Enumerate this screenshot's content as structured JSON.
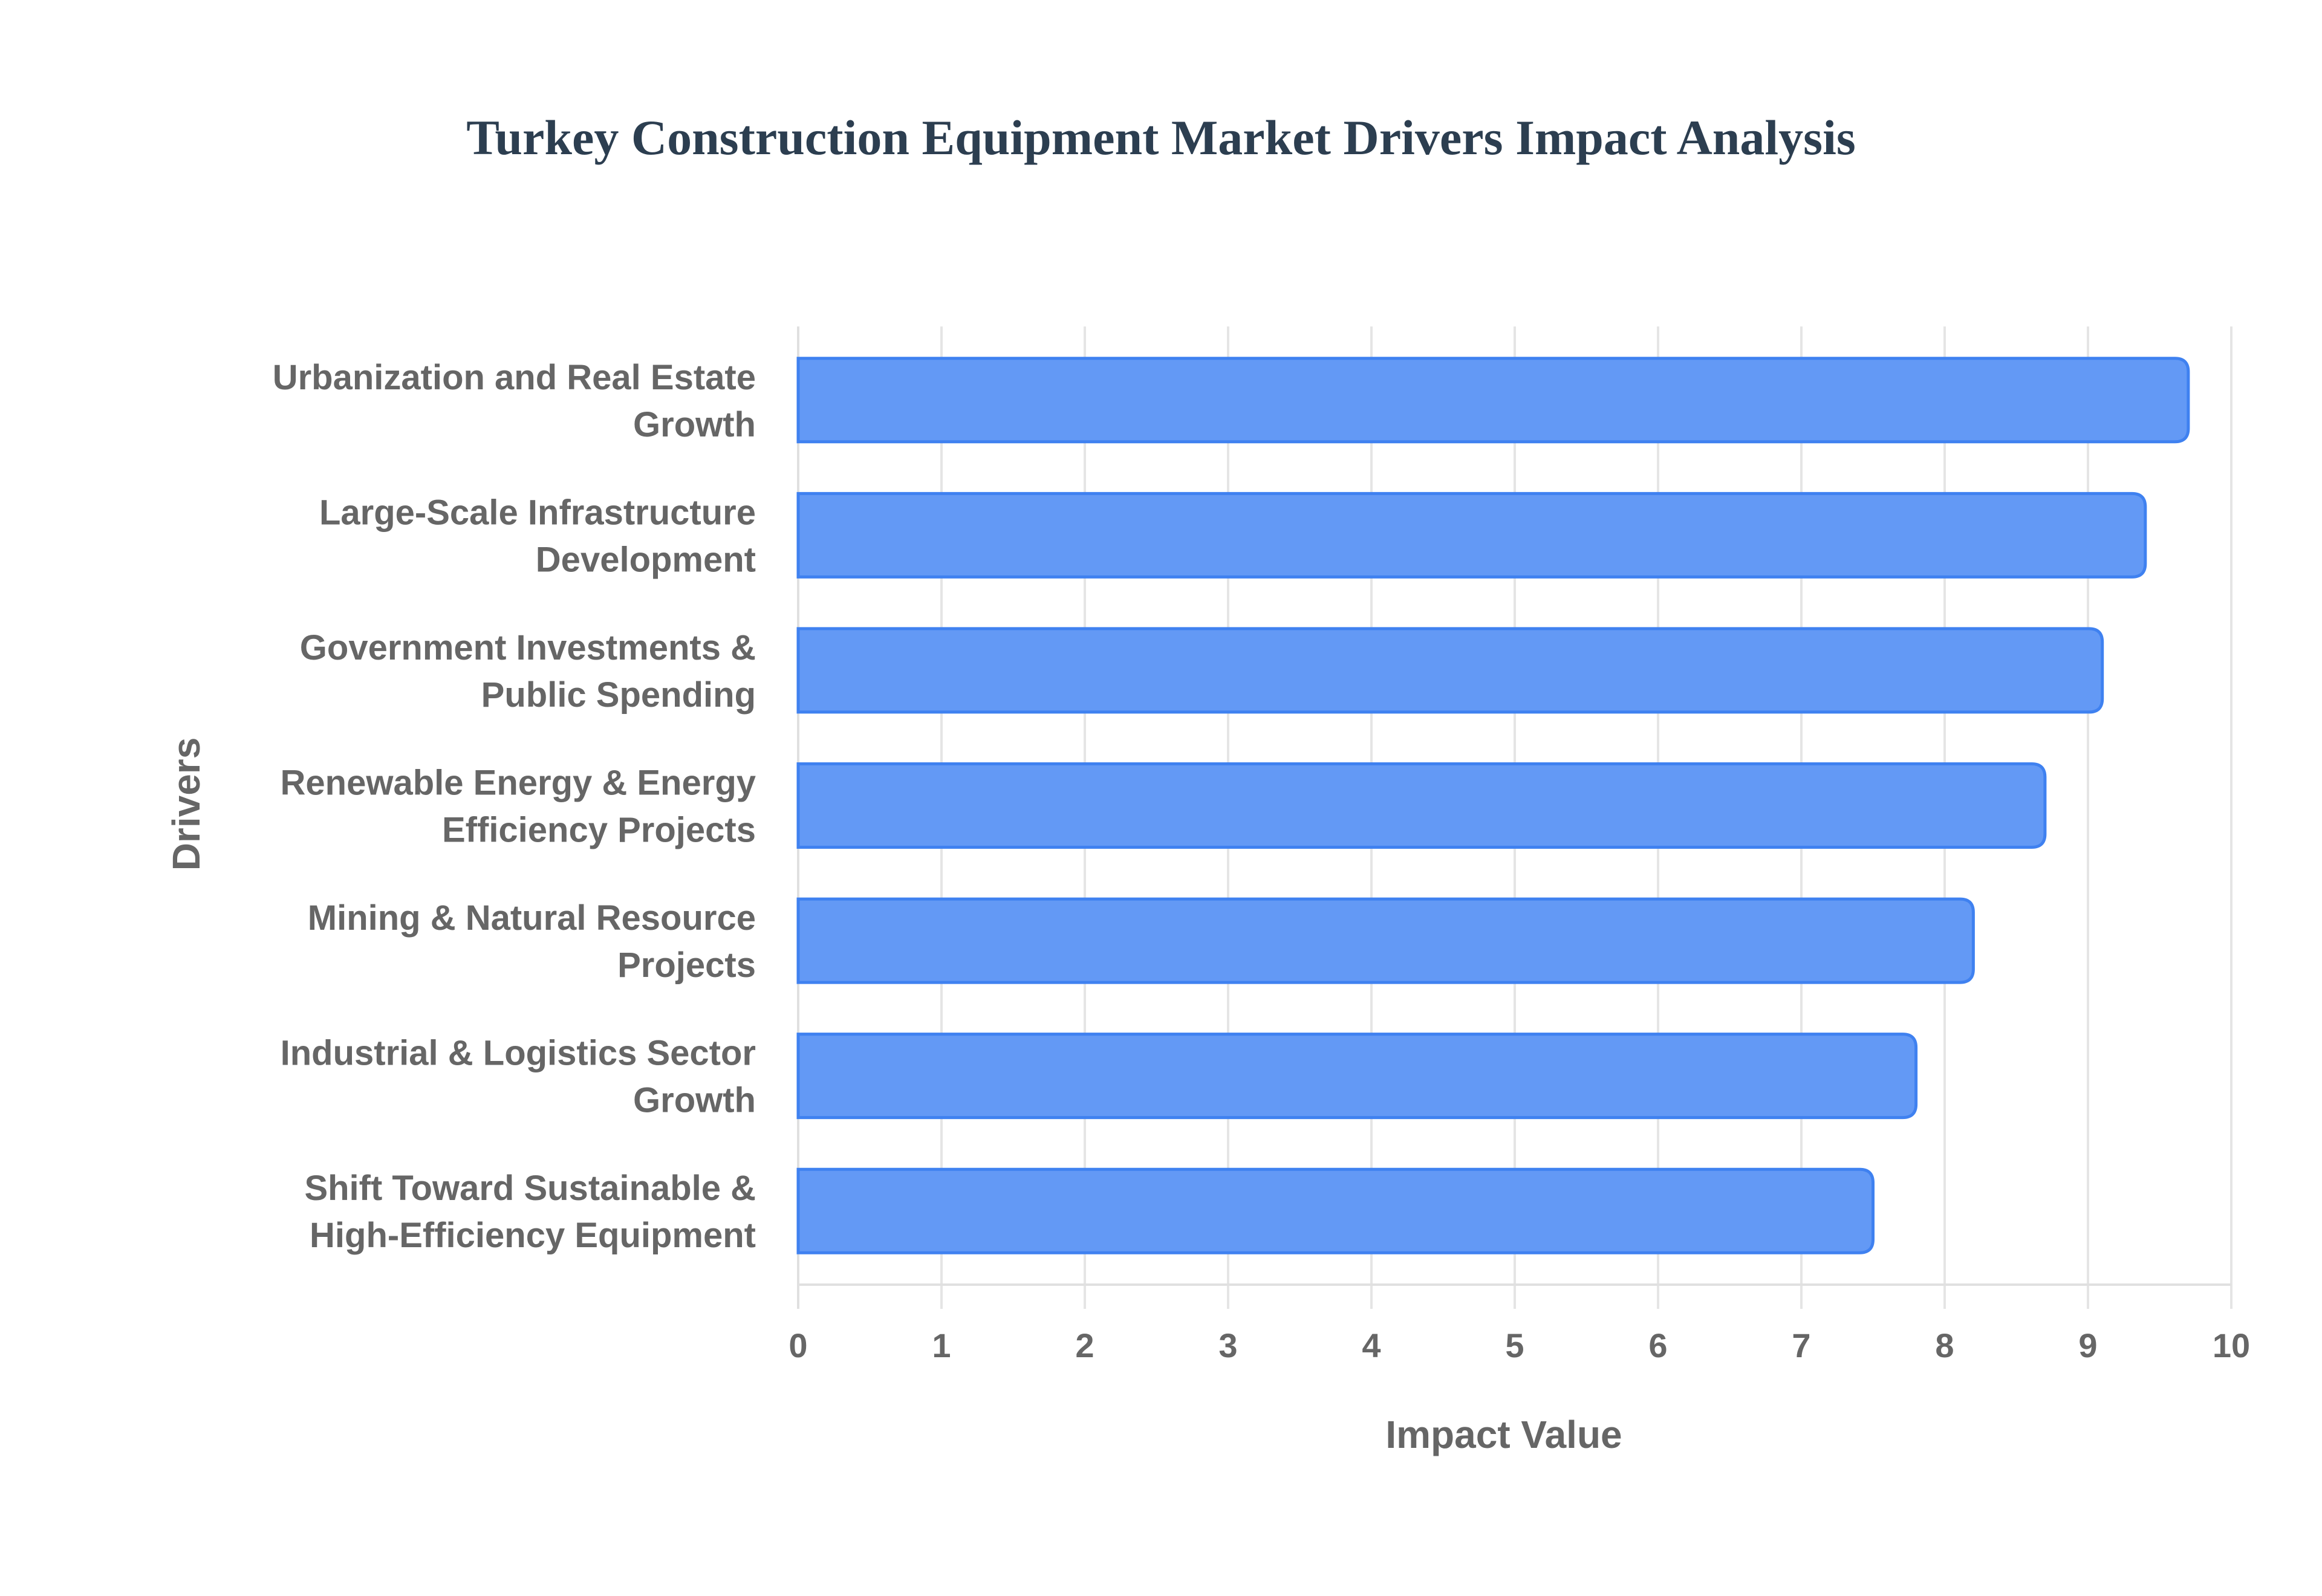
{
  "colors": {
    "bar_fill": "#6399f5",
    "bar_border": "#3f81f0",
    "title": "#2c3e50",
    "text": "#666666",
    "grid": "#e5e5e5"
  },
  "chart_data": {
    "type": "bar",
    "orientation": "horizontal",
    "title": "Turkey Construction Equipment Market Drivers Impact Analysis",
    "xlabel": "Impact Value",
    "ylabel": "Drivers",
    "xlim": [
      0,
      10
    ],
    "x_ticks": [
      "0",
      "1",
      "2",
      "3",
      "4",
      "5",
      "6",
      "7",
      "8",
      "9",
      "10"
    ],
    "grid": true,
    "legend": null,
    "categories": [
      [
        "Urbanization and Real Estate",
        "Growth"
      ],
      [
        "Large-Scale Infrastructure",
        "Development"
      ],
      [
        "Government Investments &",
        "Public Spending"
      ],
      [
        "Renewable Energy & Energy",
        "Efficiency Projects"
      ],
      [
        "Mining & Natural Resource",
        "Projects"
      ],
      [
        "Industrial & Logistics Sector",
        "Growth"
      ],
      [
        "Shift Toward Sustainable &",
        "High-Efficiency Equipment"
      ]
    ],
    "category_names": [
      "Urbanization and Real Estate Growth",
      "Large-Scale Infrastructure Development",
      "Government Investments & Public Spending",
      "Renewable Energy & Energy Efficiency Projects",
      "Mining & Natural Resource Projects",
      "Industrial & Logistics Sector Growth",
      "Shift Toward Sustainable & High-Efficiency Equipment"
    ],
    "values": [
      9.7,
      9.4,
      9.1,
      8.7,
      8.2,
      7.8,
      7.5
    ]
  }
}
